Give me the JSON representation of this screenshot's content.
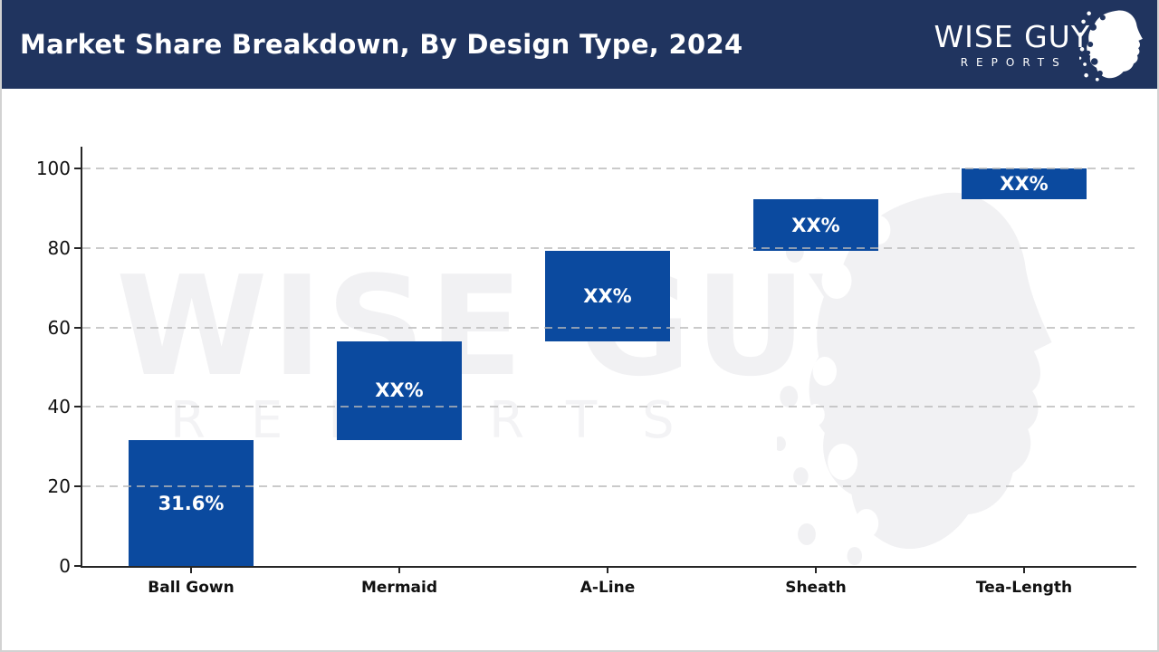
{
  "header": {
    "title": "Market Share Breakdown, By Design Type, 2024",
    "logo": {
      "name": "WISE GUY",
      "sub": "REPORTS"
    }
  },
  "watermark": {
    "line1": "WISE GUY",
    "line2": "REPORTS"
  },
  "colors": {
    "header_bg": "#20345F",
    "bar": "#0B4A9F",
    "bar_label": "#ffffff",
    "grid": "#bcbcbc",
    "axis": "#262626",
    "watermark": "#f1f1f3",
    "frame_border": "#d2d2d2"
  },
  "chart_data": {
    "type": "bar",
    "subtype": "waterfall",
    "title": "Market Share Breakdown, By Design Type, 2024",
    "categories": [
      "Ball Gown",
      "Mermaid",
      "A-Line",
      "Sheath",
      "Tea-Length"
    ],
    "segments": [
      {
        "category": "Ball Gown",
        "start": 0,
        "end": 31.6,
        "label": "31.6%"
      },
      {
        "category": "Mermaid",
        "start": 31.6,
        "end": 56.6,
        "label": "XX%"
      },
      {
        "category": "A-Line",
        "start": 56.6,
        "end": 79.2,
        "label": "XX%"
      },
      {
        "category": "Sheath",
        "start": 79.2,
        "end": 92.2,
        "label": "XX%"
      },
      {
        "category": "Tea-Length",
        "start": 92.2,
        "end": 100,
        "label": "XX%"
      }
    ],
    "yticks": [
      0,
      20,
      40,
      60,
      80,
      100
    ],
    "ylim": [
      0,
      105
    ],
    "xlabel": "",
    "ylabel": "",
    "grid": "horizontal dashed, drawn over bars",
    "legend": "none",
    "bar_color": "#0B4A9F",
    "label_color": "#ffffff"
  }
}
